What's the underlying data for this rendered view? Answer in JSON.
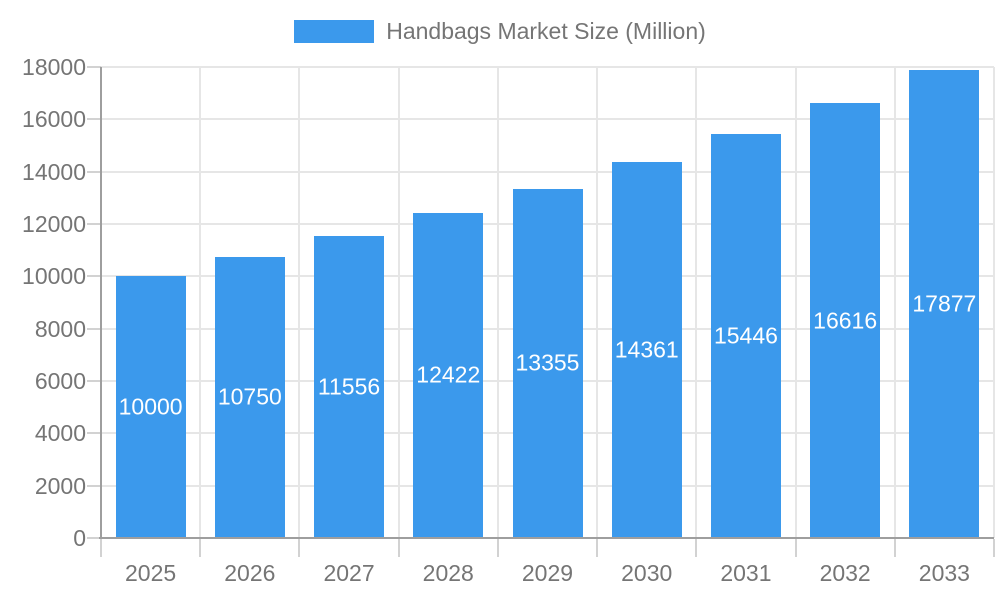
{
  "legend": {
    "items": [
      {
        "label": "Handbags Market Size (Million)",
        "color": "#3b99ec"
      }
    ],
    "position": "top"
  },
  "chart_data": {
    "type": "bar",
    "title": "Handbags Market Size (Million)",
    "series_name": "Handbags Market Size (Million)",
    "categories": [
      "2025",
      "2026",
      "2027",
      "2028",
      "2029",
      "2030",
      "2031",
      "2032",
      "2033"
    ],
    "values": [
      10000,
      10750,
      11556,
      12422,
      13355,
      14361,
      15446,
      16616,
      17877
    ],
    "data_labels": [
      "10000",
      "10750",
      "11556",
      "12422",
      "13355",
      "14361",
      "15446",
      "16616",
      "17877"
    ],
    "xlabel": "",
    "ylabel": "",
    "ylim": [
      0,
      18000
    ],
    "y_ticks": [
      0,
      2000,
      4000,
      6000,
      8000,
      10000,
      12000,
      14000,
      16000,
      18000
    ],
    "grid": true,
    "legend_position": "top",
    "colors": {
      "bar": "#3b99ec",
      "bar_label_text": "#ffffff",
      "axis_text": "#757575",
      "axis_line": "#9e9e9e",
      "gridline": "#e6e6e6",
      "tick": "#d2d2d2",
      "background": "#ffffff"
    }
  }
}
